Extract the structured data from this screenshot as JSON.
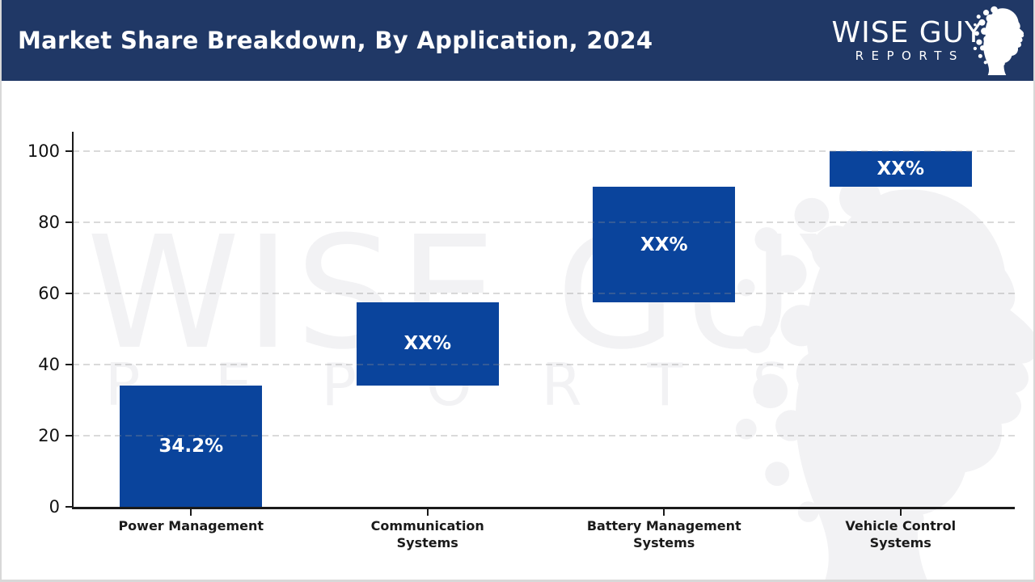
{
  "header": {
    "title": "Market Share Breakdown, By Application, 2024",
    "logo": {
      "line1": "WISE GUY",
      "line2": "REPORTS"
    }
  },
  "watermark": {
    "line1": "WISE GUY",
    "line2": "REPORTS"
  },
  "chart_data": {
    "type": "bar",
    "subtype": "floating-waterfall",
    "title": "Market Share Breakdown, By Application, 2024",
    "categories": [
      "Power Management",
      "Communication\nSystems",
      "Battery Management\nSystems",
      "Vehicle Control\nSystems"
    ],
    "bars": [
      {
        "category": "Power Management",
        "start": 0,
        "end": 34.2,
        "label": "34.2%"
      },
      {
        "category": "Communication Systems",
        "start": 34.2,
        "end": 57.5,
        "label": "XX%"
      },
      {
        "category": "Battery Management Systems",
        "start": 57.5,
        "end": 90,
        "label": "XX%"
      },
      {
        "category": "Vehicle Control Systems",
        "start": 90,
        "end": 100,
        "label": "XX%"
      }
    ],
    "xlabel": "",
    "ylabel": "",
    "ylim": [
      0,
      100
    ],
    "yticks": [
      0,
      20,
      40,
      60,
      80,
      100
    ],
    "grid": {
      "axis": "y",
      "style": "dashed"
    },
    "legend": false
  },
  "colors": {
    "header_bg": "#203866",
    "bar": "#0a449c",
    "bar_label": "#ffffff",
    "axis": "#1a1a1a",
    "watermark": "#f2f2f4",
    "page_border": "#d8d8d8"
  }
}
